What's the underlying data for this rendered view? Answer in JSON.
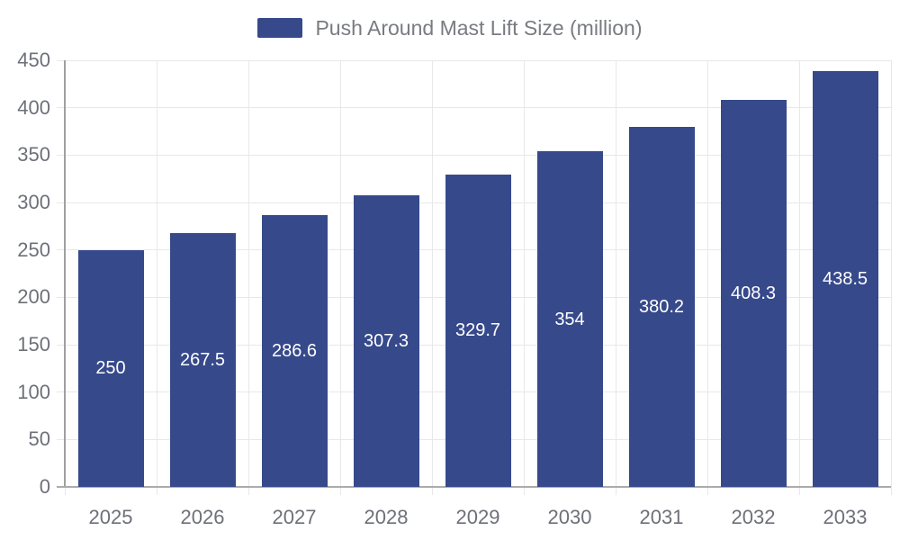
{
  "legend": {
    "label": "Push Around Mast Lift Size (million)"
  },
  "colors": {
    "bar": "#36498B",
    "bar_value_label": "#FFFFFF",
    "grid_line": "#E8E8E8",
    "y_axis_line": "#A0A0A0",
    "x_axis_line": "#ABABAB",
    "tick_label": "#6E7079",
    "legend_text": "#787B80",
    "background": "#FFFFFF"
  },
  "chart_data": {
    "type": "bar",
    "title": "Push Around Mast Lift Size (million)",
    "series_name": "Push Around Mast Lift Size (million)",
    "categories": [
      "2025",
      "2026",
      "2027",
      "2028",
      "2029",
      "2030",
      "2031",
      "2032",
      "2033"
    ],
    "values": [
      250,
      267.5,
      286.6,
      307.3,
      329.7,
      354,
      380.2,
      408.3,
      438.5
    ],
    "value_labels": [
      "250",
      "267.5",
      "286.6",
      "307.3",
      "329.7",
      "354",
      "380.2",
      "408.3",
      "438.5"
    ],
    "value_label_position": "inside-center",
    "xlabel": "",
    "ylabel": "",
    "ylim": [
      0,
      450
    ],
    "yticks": [
      0,
      50,
      100,
      150,
      200,
      250,
      300,
      350,
      400,
      450
    ],
    "grid": true,
    "legend_position": "top-center"
  }
}
